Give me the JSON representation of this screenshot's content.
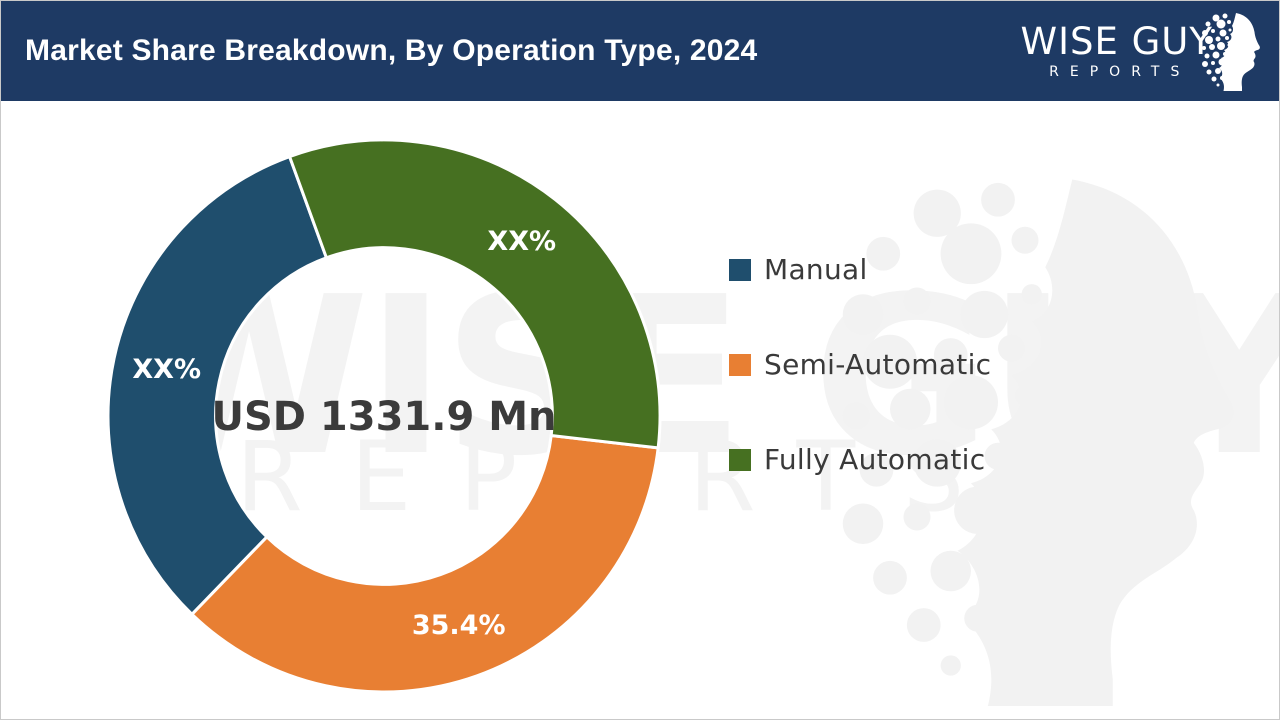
{
  "header": {
    "title": "Market Share Breakdown, By Operation Type, 2024",
    "logo": {
      "line1": "WISE GUY",
      "line2": "REPORTS"
    }
  },
  "watermark": {
    "line1": "WISE GUY",
    "line2": "REPORTS"
  },
  "chart_data": {
    "type": "donut",
    "title": "Market Share Breakdown, By Operation Type, 2024",
    "center_label": "USD 1331.9 Mn",
    "start_angle": 110,
    "direction": "counterclockwise",
    "legend_position": "right",
    "inner_radius_ratio": 0.61,
    "series": [
      {
        "name": "Manual",
        "value": 32.2,
        "label": "XX%",
        "color": "#1f4e6d"
      },
      {
        "name": "Semi-Automatic",
        "value": 35.4,
        "label": "35.4%",
        "color": "#e87f33"
      },
      {
        "name": "Fully Automatic",
        "value": 32.4,
        "label": "XX%",
        "color": "#467021"
      }
    ]
  },
  "colors": {
    "header_bg": "#1e3a64",
    "center_text": "#3b3b3b",
    "legend_text": "#3a3a3a",
    "watermark": "#f3f3f3",
    "segment_border": "#ffffff"
  }
}
